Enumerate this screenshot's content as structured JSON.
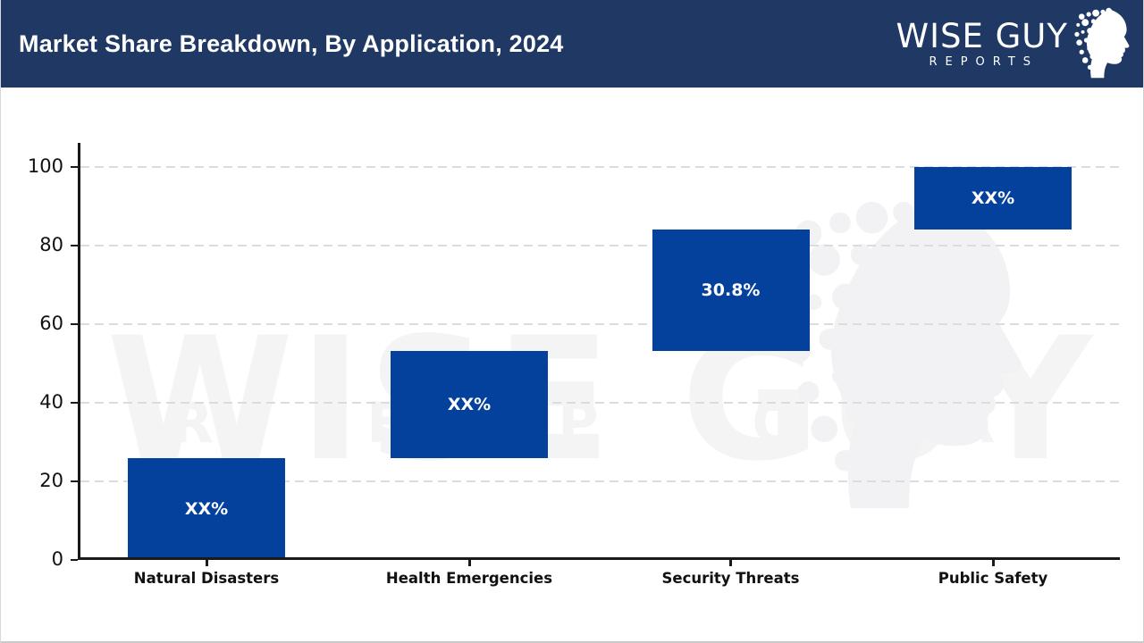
{
  "header": {
    "title": "Market Share Breakdown, By Application, 2024",
    "logo": {
      "line1": "WISE GUY",
      "line2": "REPORTS"
    }
  },
  "watermark": {
    "line1": "WISE GUY",
    "line2": "R E P O R T S"
  },
  "colors": {
    "header_bg": "#1f3864",
    "bar": "#04419d",
    "grid": "#dcdcdc",
    "axis": "#1a1a1a",
    "watermark": "#f4f4f5",
    "bar_label_text": "#ffffff"
  },
  "chart_data": {
    "type": "bar",
    "subtype": "waterfall-floating-bars",
    "title": "Market Share Breakdown, By Application, 2024",
    "categories": [
      "Natural Disasters",
      "Health Emergencies",
      "Security Threats",
      "Public Safety"
    ],
    "segments": [
      {
        "category": "Natural Disasters",
        "start": 0,
        "end": 26,
        "value_label": "XX%"
      },
      {
        "category": "Health Emergencies",
        "start": 26,
        "end": 53.2,
        "value_label": "XX%"
      },
      {
        "category": "Security Threats",
        "start": 53.2,
        "end": 84,
        "value_label": "30.8%"
      },
      {
        "category": "Public Safety",
        "start": 84,
        "end": 100,
        "value_label": "XX%"
      }
    ],
    "xlabel": "",
    "ylabel": "",
    "y_ticks": [
      0,
      20,
      40,
      60,
      80,
      100
    ],
    "ylim": [
      0,
      106
    ],
    "grid": "horizontal-dashed",
    "legend": "none"
  }
}
